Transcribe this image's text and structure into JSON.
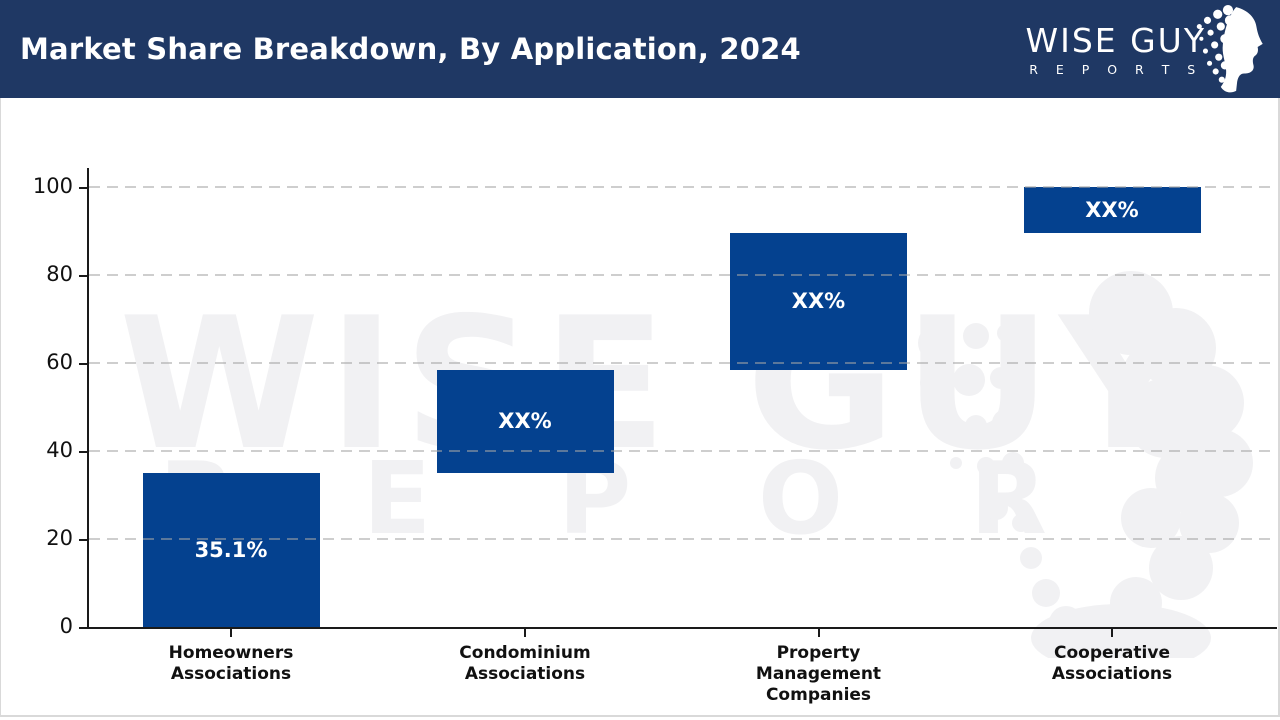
{
  "header": {
    "title": "Market Share Breakdown, By Application, 2024",
    "bg_color": "#1f3864",
    "brand_name": "WISE GUY",
    "brand_sub": "R E P O R T S"
  },
  "watermark": {
    "line1": "WISE GUY",
    "line2": "R E P O R T S"
  },
  "chart_data": {
    "type": "bar",
    "subtype": "waterfall",
    "title": "Market Share Breakdown, By Application, 2024",
    "categories": [
      "Homeowners Associations",
      "Condominium Associations",
      "Property Management Companies",
      "Cooperative Associations"
    ],
    "bars": [
      {
        "category_lines": [
          "Homeowners",
          "Associations"
        ],
        "label": "35.1%",
        "start": 0,
        "end": 35.1
      },
      {
        "category_lines": [
          "Condominium",
          "Associations"
        ],
        "label": "XX%",
        "start": 35.1,
        "end": 58.5
      },
      {
        "category_lines": [
          "Property",
          "Management",
          "Companies"
        ],
        "label": "XX%",
        "start": 58.5,
        "end": 89.5
      },
      {
        "category_lines": [
          "Cooperative",
          "Associations"
        ],
        "label": "XX%",
        "start": 89.5,
        "end": 100
      }
    ],
    "ylim": [
      0,
      100
    ],
    "yticks": [
      0,
      20,
      40,
      60,
      80,
      100
    ],
    "bar_color": "#04418f",
    "grid": true,
    "legend": false
  }
}
